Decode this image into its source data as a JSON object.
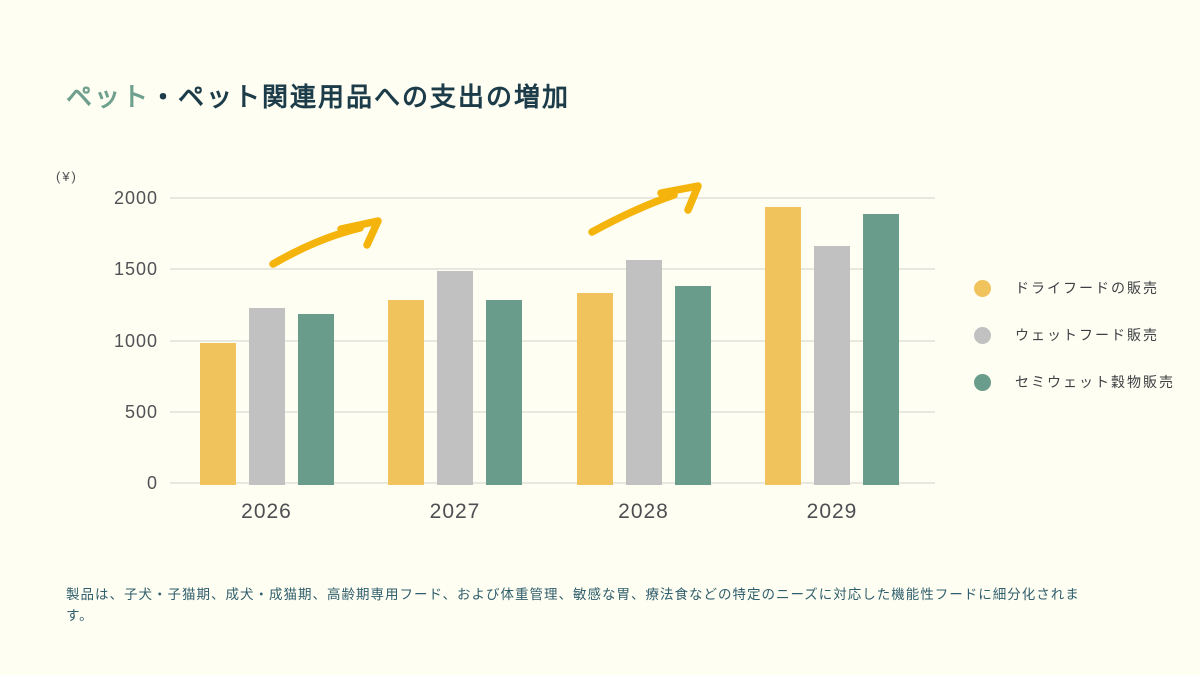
{
  "title": {
    "accent": "ペット",
    "rest": "・ペット関連用品への支出の増加"
  },
  "chart_data": {
    "type": "bar",
    "title": "ペット・ペット関連用品への支出の増加",
    "unit_label": "(¥)",
    "categories": [
      "2026",
      "2027",
      "2028",
      "2029"
    ],
    "series": [
      {
        "name": "ドライフードの販売",
        "color": "#F0C35D",
        "values": [
          1000,
          1300,
          1350,
          1950
        ]
      },
      {
        "name": "ウェットフード販売",
        "color": "#C1C1C1",
        "values": [
          1240,
          1500,
          1580,
          1680
        ]
      },
      {
        "name": "セミウェット穀物販売",
        "color": "#699C8A",
        "values": [
          1200,
          1300,
          1400,
          1900
        ]
      }
    ],
    "xlabel": "",
    "ylabel": "(¥)",
    "ylim": [
      0,
      2000
    ],
    "yticks": [
      0,
      500,
      1000,
      1500,
      2000
    ],
    "grid": true,
    "legend_position": "right",
    "annotations": [
      "upward-trend-arrow between 2026 and 2027",
      "upward-trend-arrow between 2027 and 2028"
    ],
    "annotation_color": "#F5B40B"
  },
  "footer": {
    "note": "製品は、子犬・子猫期、成犬・成猫期、高齢期専用フード、および体重管理、敏感な胃、療法食などの特定のニーズに対応した機能性フードに細分化されます。"
  },
  "colors": {
    "background": "#FFFEF2",
    "title_dark": "#1C3C4A",
    "title_accent": "#6FA08E",
    "gridline": "#E9E8E0",
    "axis_text": "#515256",
    "footer_text": "#2F5E6C"
  }
}
